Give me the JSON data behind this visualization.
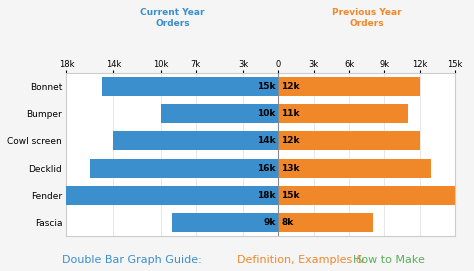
{
  "categories": [
    "Fascia",
    "Fender",
    "Decklid",
    "Cowl screen",
    "Bumper",
    "Bonnet"
  ],
  "current_year": [
    9,
    18,
    16,
    14,
    10,
    15
  ],
  "previous_year": [
    8,
    15,
    13,
    12,
    11,
    12
  ],
  "current_year_labels": [
    "9k",
    "18k",
    "16k",
    "14k",
    "10k",
    "15k"
  ],
  "previous_year_labels": [
    "8k",
    "15k",
    "13k",
    "12k",
    "11k",
    "12k"
  ],
  "blue_color": "#3B8FCC",
  "orange_color": "#F0882A",
  "bg_color": "#F5F5F5",
  "chart_bg": "#FFFFFF",
  "header_blue_color": "#3B8FCC",
  "header_orange_color": "#F0882A",
  "title_blue_color": "#3B8FCC",
  "title_orange_color": "#F0882A",
  "title_green_color": "#5BAD5A",
  "tick_positions": [
    -18,
    -14,
    -10,
    -7,
    -3,
    0,
    3,
    6,
    9,
    12,
    15
  ],
  "tick_labels": [
    "18k",
    "14k",
    "10k",
    "7k",
    "3k",
    "0",
    "3k",
    "6k",
    "9k",
    "12k",
    "15k"
  ],
  "xlim": [
    -18,
    15
  ],
  "bar_height": 0.7,
  "label_fontsize": 6.5,
  "category_fontsize": 6.5,
  "tick_fontsize": 6,
  "header_fontsize": 6.5,
  "title_fontsize": 8
}
